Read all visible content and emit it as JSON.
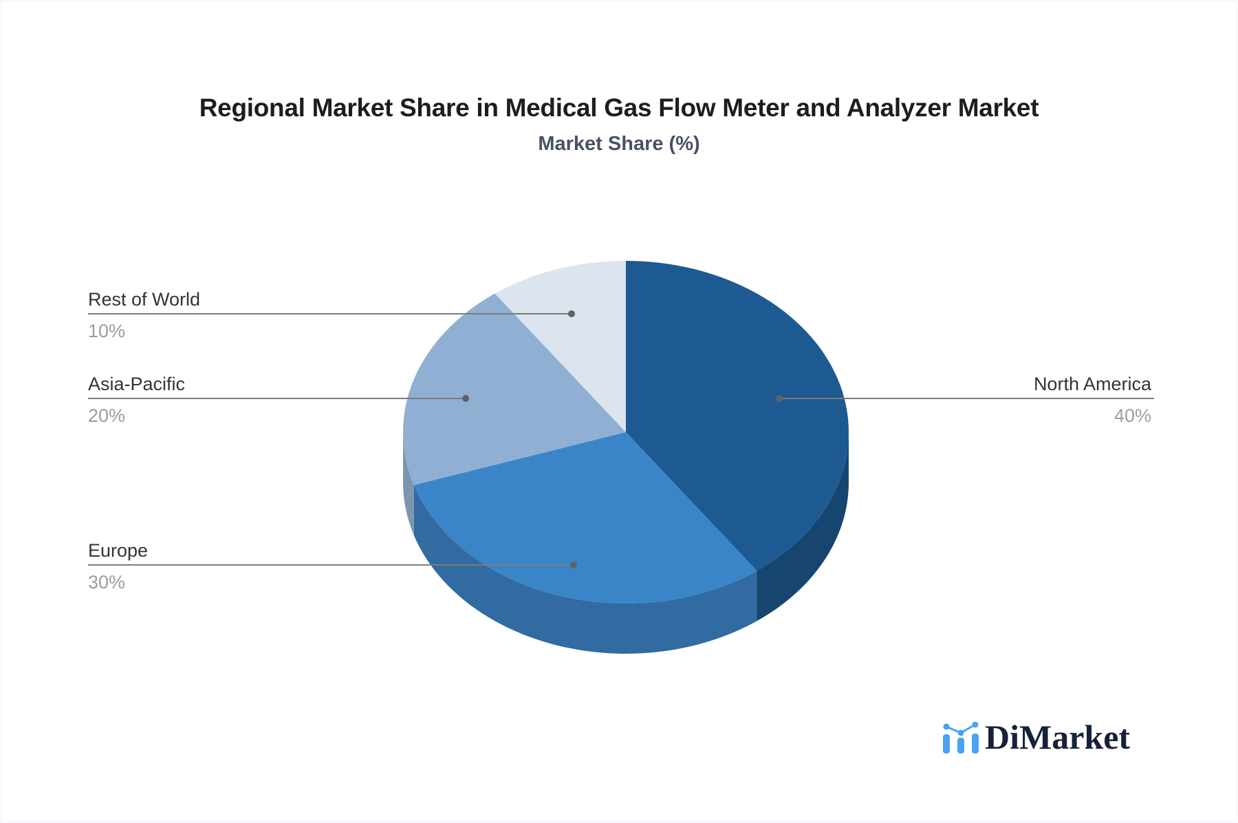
{
  "title": "Regional Market Share in Medical Gas Flow Meter and Analyzer Market",
  "subtitle": "Market Share (%)",
  "chart_data": {
    "type": "pie",
    "title": "Regional Market Share in Medical Gas Flow Meter and Analyzer Market",
    "subtitle": "Market Share (%)",
    "effect": "3d",
    "start_angle_deg": 0,
    "direction": "clockwise",
    "categories": [
      "North America",
      "Europe",
      "Asia-Pacific",
      "Rest of World"
    ],
    "values": [
      40,
      30,
      20,
      10
    ],
    "slices": [
      {
        "label": "North America",
        "value": 40,
        "pct_label": "40%",
        "color": "#1E5A92",
        "side_color": "#164670",
        "label_side": "right"
      },
      {
        "label": "Europe",
        "value": 30,
        "pct_label": "30%",
        "color": "#3A85C8",
        "side_color": "#316BA1",
        "label_side": "left"
      },
      {
        "label": "Asia-Pacific",
        "value": 20,
        "pct_label": "20%",
        "color": "#8FAFD3",
        "side_color": "#7E95AF",
        "label_side": "left"
      },
      {
        "label": "Rest of World",
        "value": 10,
        "pct_label": "10%",
        "color": "#DCE4EF",
        "label_side": "left"
      }
    ]
  },
  "logo": {
    "text": "DiMarket",
    "icon": "bar-chart-trend-icon",
    "icon_color": "#4AA2F2",
    "text_color": "#16213A"
  },
  "colors": {
    "title": "#1b1d21",
    "subtitle": "#485263",
    "label_text": "#333333",
    "pct_text": "#9c9c9c",
    "leader_line": "#7c7c7c",
    "leader_dot": "#616161",
    "background": "#ffffff",
    "frame_border": "#f6f8fb"
  }
}
